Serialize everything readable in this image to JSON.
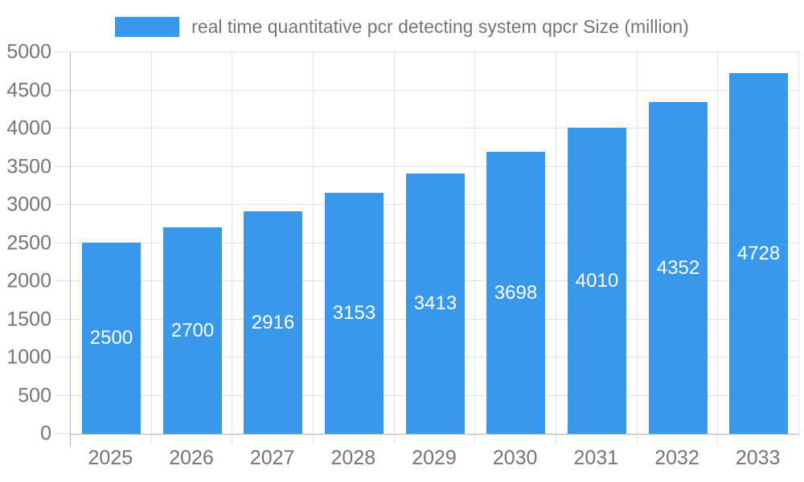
{
  "legend": {
    "label": "real time quantitative pcr detecting system qpcr Size (million)"
  },
  "colors": {
    "bar": "#3898ec",
    "grid": "#e2e2e2",
    "axis": "#b0b0b0",
    "tick_text": "#757575",
    "value_label": "#ffffff",
    "background": "#ffffff"
  },
  "chart_data": {
    "type": "bar",
    "title": "real time quantitative pcr detecting system qpcr Size (million)",
    "categories": [
      "2025",
      "2026",
      "2027",
      "2028",
      "2029",
      "2030",
      "2031",
      "2032",
      "2033"
    ],
    "values": [
      2500,
      2700,
      2916,
      3153,
      3413,
      3698,
      4010,
      4352,
      4728
    ],
    "value_labels": [
      "2500",
      "2700",
      "2916",
      "3153",
      "3413",
      "3698",
      "4010",
      "4352",
      "4728"
    ],
    "xlabel": "",
    "ylabel": "",
    "ylim": [
      0,
      5000
    ],
    "ytick_step": 500,
    "y_ticks": [
      "0",
      "500",
      "1000",
      "1500",
      "2000",
      "2500",
      "3000",
      "3500",
      "4000",
      "4500",
      "5000"
    ],
    "grid": true,
    "legend_position": "top",
    "value_labels_position": "inside-center"
  }
}
